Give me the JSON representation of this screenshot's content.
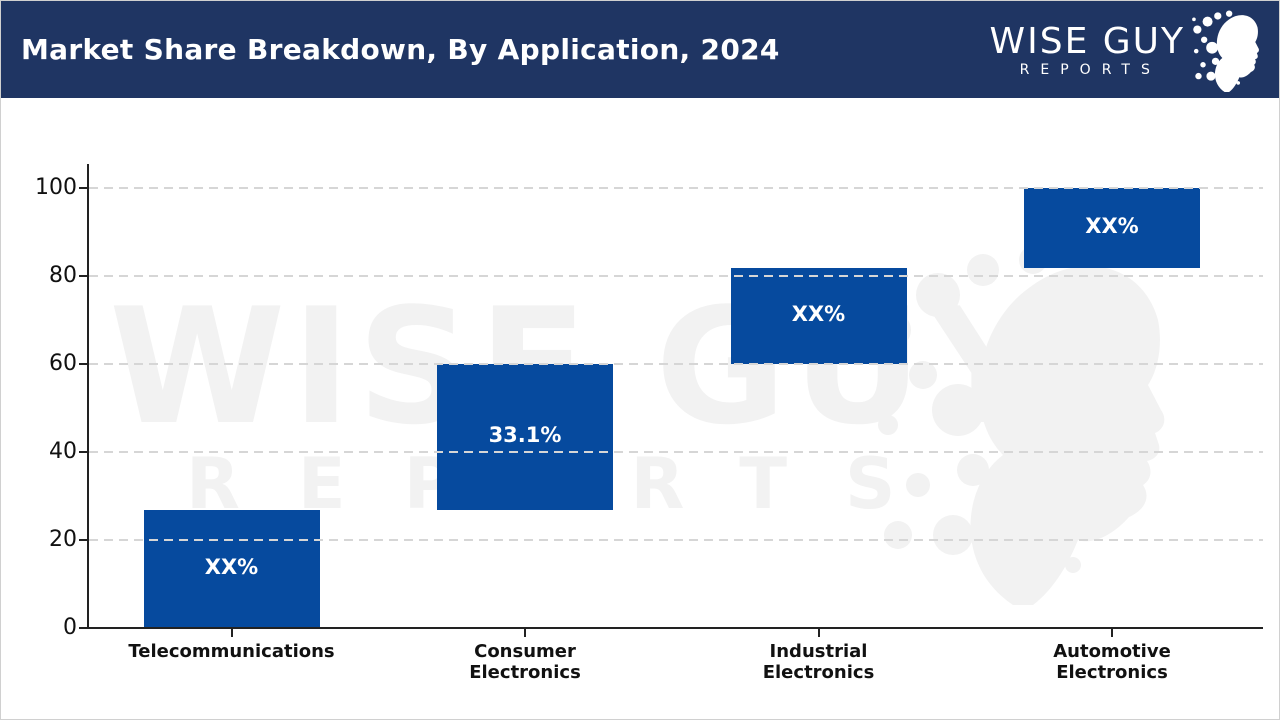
{
  "header": {
    "title": "Market Share Breakdown, By Application, 2024",
    "logo": {
      "line1": "WISE GUY",
      "line2": "REPORTS"
    }
  },
  "watermark": {
    "line1": "WISE GUY",
    "line2": "REPORTS"
  },
  "colors": {
    "header_bg": "#1f3563",
    "bar_fill": "#064a9e",
    "bar_label_text": "#ffffff",
    "axis": "#222222",
    "gridline": "#d6d6d6",
    "watermark": "#f2f2f2",
    "title_text": "#ffffff"
  },
  "chart_data": {
    "type": "bar",
    "subtype": "waterfall",
    "title": "Market Share Breakdown, By Application, 2024",
    "xlabel": "",
    "ylabel": "",
    "ylim": [
      0,
      105.5
    ],
    "yticks": [
      0,
      20,
      40,
      60,
      80,
      100
    ],
    "grid": "horizontal dashed, drawn over bars",
    "legend": "none",
    "categories": [
      "Telecommunications",
      "Consumer\nElectronics",
      "Industrial\nElectronics",
      "Automotive\nElectronics"
    ],
    "segments": [
      {
        "category": "Telecommunications",
        "start": 0,
        "end": 26.9,
        "value": 26.9,
        "label": "XX%"
      },
      {
        "category": "Consumer Electronics",
        "start": 26.9,
        "end": 60.0,
        "value": 33.1,
        "label": "33.1%"
      },
      {
        "category": "Industrial Electronics",
        "start": 60.0,
        "end": 81.9,
        "value": 21.9,
        "label": "XX%"
      },
      {
        "category": "Automotive Electronics",
        "start": 81.9,
        "end": 100.0,
        "value": 18.1,
        "label": "XX%"
      }
    ]
  }
}
